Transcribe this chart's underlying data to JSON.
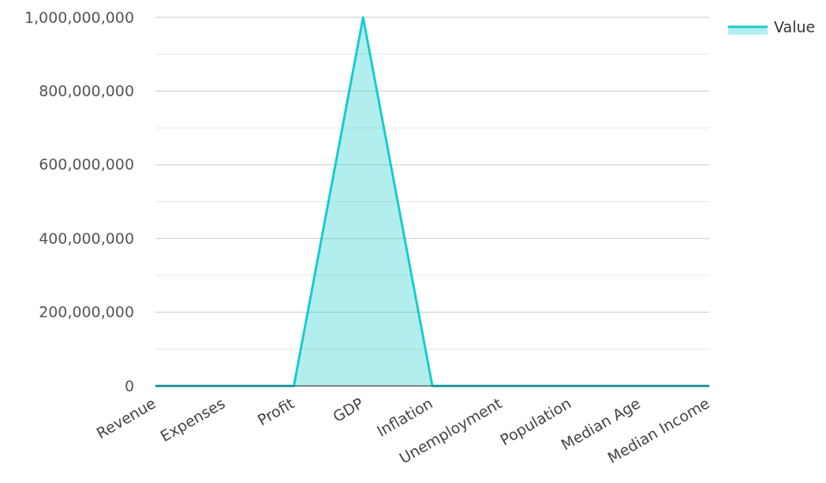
{
  "chart_data": {
    "type": "area",
    "categories": [
      "Revenue",
      "Expenses",
      "Profit",
      "GDP",
      "Inflation",
      "Unemployment",
      "Population",
      "Median Age",
      "Median Income"
    ],
    "series": [
      {
        "name": "Value",
        "color": "#17cccc",
        "values": [
          0,
          0,
          0,
          1000000000,
          0,
          0,
          0,
          0,
          0
        ]
      }
    ],
    "ylim": [
      0,
      1000000000
    ],
    "yticks": [
      0,
      {
        "value": 100000000,
        "label": null
      },
      {
        "value": 200000000,
        "label": "200,000,000"
      },
      {
        "value": 300000000,
        "label": null
      },
      {
        "value": 400000000,
        "label": "400,000,000"
      },
      {
        "value": 500000000,
        "label": null
      },
      {
        "value": 600000000,
        "label": "600,000,000"
      },
      {
        "value": 700000000,
        "label": null
      },
      {
        "value": 800000000,
        "label": "800,000,000"
      },
      {
        "value": 900000000,
        "label": null
      },
      {
        "value": 1000000000,
        "label": "1,000,000,000"
      }
    ],
    "grid": "y",
    "legend": "top right"
  }
}
